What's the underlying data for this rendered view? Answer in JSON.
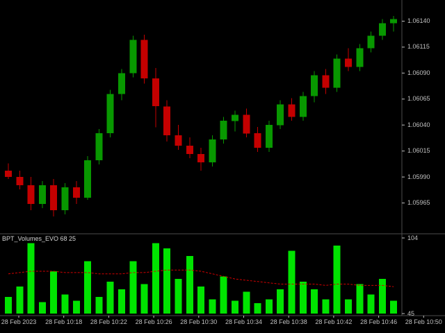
{
  "indicator_label": "BPT_Volumes_EVO 68 25",
  "colors": {
    "background": "#000000",
    "bull": "#089800",
    "bear": "#c40000",
    "volume": "#00e400",
    "volume_ma_line": "#d40000",
    "axis_text": "#c0c0c0",
    "separator": "#4d4d4d"
  },
  "chart_data": {
    "type": "candlestick",
    "subwindow_indicator": "BPT_Volumes_EVO 68 25",
    "legend_position": "none",
    "grid": false,
    "price_axis_ticks": [
      "1.06140",
      "1.06115",
      "1.06090",
      "1.06065",
      "1.06040",
      "1.06015",
      "1.05990",
      "1.05965"
    ],
    "volume_axis_ticks": [
      "104",
      "45"
    ],
    "time_labels": [
      "28 Feb 2023",
      "28 Feb 10:18",
      "28 Feb 10:22",
      "28 Feb 10:26",
      "28 Feb 10:30",
      "28 Feb 10:34",
      "28 Feb 10:38",
      "28 Feb 10:42",
      "28 Feb 10:46",
      "28 Feb 10:50"
    ],
    "price_ylim": [
      1.0594,
      1.06155
    ],
    "volume_ylim": [
      45,
      104
    ],
    "candles": [
      {
        "t": "10:13",
        "o": 1.05996,
        "h": 1.06003,
        "l": 1.05988,
        "c": 1.0599
      },
      {
        "t": "10:14",
        "o": 1.0599,
        "h": 1.05996,
        "l": 1.05978,
        "c": 1.05982
      },
      {
        "t": "10:15",
        "o": 1.05982,
        "h": 1.0599,
        "l": 1.05958,
        "c": 1.05964
      },
      {
        "t": "10:16",
        "o": 1.05964,
        "h": 1.05986,
        "l": 1.0596,
        "c": 1.05982
      },
      {
        "t": "10:17",
        "o": 1.05982,
        "h": 1.05988,
        "l": 1.05952,
        "c": 1.05958
      },
      {
        "t": "10:18",
        "o": 1.05958,
        "h": 1.05984,
        "l": 1.05954,
        "c": 1.0598
      },
      {
        "t": "10:19",
        "o": 1.0598,
        "h": 1.05986,
        "l": 1.05964,
        "c": 1.0597
      },
      {
        "t": "10:20",
        "o": 1.0597,
        "h": 1.0601,
        "l": 1.05968,
        "c": 1.06006
      },
      {
        "t": "10:21",
        "o": 1.06006,
        "h": 1.06036,
        "l": 1.06002,
        "c": 1.06032
      },
      {
        "t": "10:22",
        "o": 1.06032,
        "h": 1.06074,
        "l": 1.06028,
        "c": 1.0607
      },
      {
        "t": "10:23",
        "o": 1.0607,
        "h": 1.06094,
        "l": 1.06064,
        "c": 1.0609
      },
      {
        "t": "10:24",
        "o": 1.0609,
        "h": 1.06126,
        "l": 1.06086,
        "c": 1.06122
      },
      {
        "t": "10:25",
        "o": 1.06122,
        "h": 1.06127,
        "l": 1.0608,
        "c": 1.06085
      },
      {
        "t": "10:26",
        "o": 1.06085,
        "h": 1.06095,
        "l": 1.06038,
        "c": 1.06058
      },
      {
        "t": "10:27",
        "o": 1.06058,
        "h": 1.06064,
        "l": 1.06024,
        "c": 1.0603
      },
      {
        "t": "10:28",
        "o": 1.0603,
        "h": 1.0604,
        "l": 1.06016,
        "c": 1.0602
      },
      {
        "t": "10:29",
        "o": 1.0602,
        "h": 1.06028,
        "l": 1.06008,
        "c": 1.06012
      },
      {
        "t": "10:30",
        "o": 1.06012,
        "h": 1.06018,
        "l": 1.05996,
        "c": 1.06004
      },
      {
        "t": "10:31",
        "o": 1.06004,
        "h": 1.0603,
        "l": 1.06,
        "c": 1.06026
      },
      {
        "t": "10:32",
        "o": 1.06026,
        "h": 1.06048,
        "l": 1.06022,
        "c": 1.06044
      },
      {
        "t": "10:33",
        "o": 1.06044,
        "h": 1.06054,
        "l": 1.06034,
        "c": 1.0605
      },
      {
        "t": "10:34",
        "o": 1.0605,
        "h": 1.06056,
        "l": 1.06028,
        "c": 1.06032
      },
      {
        "t": "10:35",
        "o": 1.06032,
        "h": 1.06038,
        "l": 1.06014,
        "c": 1.06018
      },
      {
        "t": "10:36",
        "o": 1.06018,
        "h": 1.06044,
        "l": 1.06014,
        "c": 1.0604
      },
      {
        "t": "10:37",
        "o": 1.0604,
        "h": 1.06064,
        "l": 1.06036,
        "c": 1.0606
      },
      {
        "t": "10:38",
        "o": 1.0606,
        "h": 1.06066,
        "l": 1.06044,
        "c": 1.06048
      },
      {
        "t": "10:39",
        "o": 1.06048,
        "h": 1.06072,
        "l": 1.06044,
        "c": 1.06068
      },
      {
        "t": "10:40",
        "o": 1.06068,
        "h": 1.06092,
        "l": 1.06062,
        "c": 1.06088
      },
      {
        "t": "10:41",
        "o": 1.06088,
        "h": 1.06094,
        "l": 1.0607,
        "c": 1.06076
      },
      {
        "t": "10:42",
        "o": 1.06076,
        "h": 1.06108,
        "l": 1.06072,
        "c": 1.06104
      },
      {
        "t": "10:43",
        "o": 1.06104,
        "h": 1.06114,
        "l": 1.06092,
        "c": 1.06096
      },
      {
        "t": "10:44",
        "o": 1.06096,
        "h": 1.06118,
        "l": 1.06092,
        "c": 1.06114
      },
      {
        "t": "10:45",
        "o": 1.06114,
        "h": 1.0613,
        "l": 1.0611,
        "c": 1.06126
      },
      {
        "t": "10:46",
        "o": 1.06126,
        "h": 1.06142,
        "l": 1.06122,
        "c": 1.06138
      },
      {
        "t": "10:47",
        "o": 1.06138,
        "h": 1.06145,
        "l": 1.0613,
        "c": 1.06142
      }
    ],
    "volumes": [
      58,
      66,
      100,
      54,
      78,
      60,
      55,
      86,
      58,
      70,
      64,
      86,
      68,
      100,
      96,
      72,
      90,
      66,
      56,
      74,
      55,
      62,
      53,
      56,
      64,
      94,
      70,
      64,
      56,
      98,
      56,
      68,
      60,
      72,
      55
    ],
    "volume_ma": [
      76,
      77,
      78,
      78,
      78,
      77,
      77,
      77,
      76,
      76,
      76,
      77,
      77,
      78,
      79,
      79,
      79,
      78,
      76,
      74,
      72,
      71,
      70,
      69,
      68,
      68,
      68,
      68,
      67,
      68,
      68,
      67,
      67,
      67,
      66
    ]
  }
}
